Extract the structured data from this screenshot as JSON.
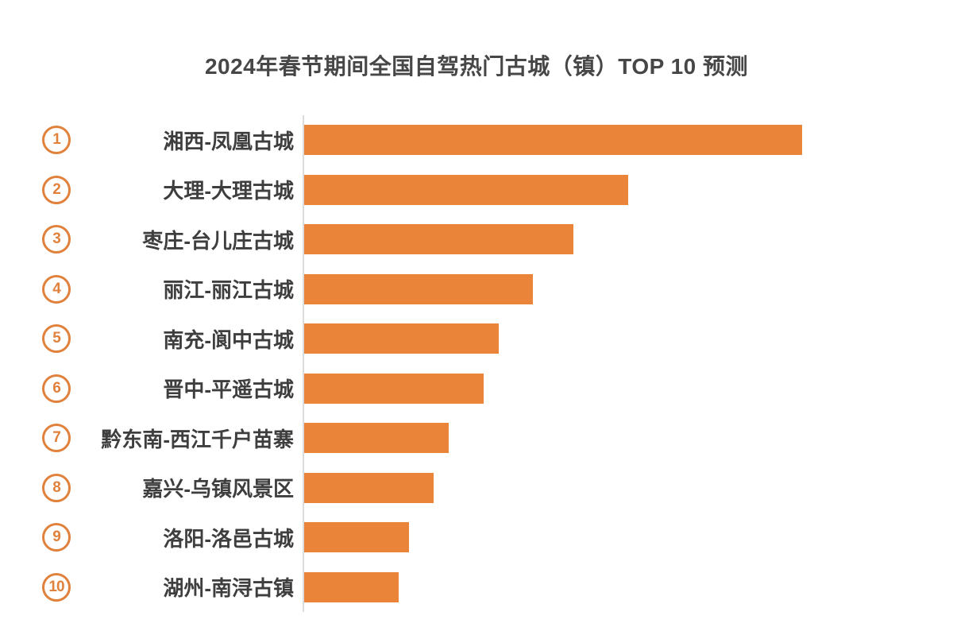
{
  "colors": {
    "bar": "#EA8438",
    "rank_badge": "#E0813C",
    "title_text": "#474747",
    "label_text": "#3E3E3E",
    "axis_line": "#DCDCDC",
    "background": "#FFFFFF"
  },
  "chart_data": {
    "type": "bar",
    "orientation": "horizontal",
    "title": "2024年春节期间全国自驾热门古城（镇）TOP 10 预测",
    "ranks": [
      "1",
      "2",
      "3",
      "4",
      "5",
      "6",
      "7",
      "8",
      "9",
      "10"
    ],
    "categories": [
      "湘西-凤凰古城",
      "大理-大理古城",
      "枣庄-台儿庄古城",
      "丽江-丽江古城",
      "南充-阆中古城",
      "晋中-平遥古城",
      "黔东南-西江千户苗寨",
      "嘉兴-乌镇风景区",
      "洛阳-洛邑古城",
      "湖州-南浔古镇"
    ],
    "values": [
      100,
      65,
      54,
      46,
      39,
      36,
      29,
      26,
      21,
      19
    ],
    "value_basis": "relative bar length, longest bar = 100 (chart shows no numeric axis, ticks or data labels)",
    "xlabel": "",
    "ylabel": "",
    "xlim": [
      0,
      100
    ],
    "grid": false,
    "legend": false,
    "bars_start_at_axis_line": true
  }
}
